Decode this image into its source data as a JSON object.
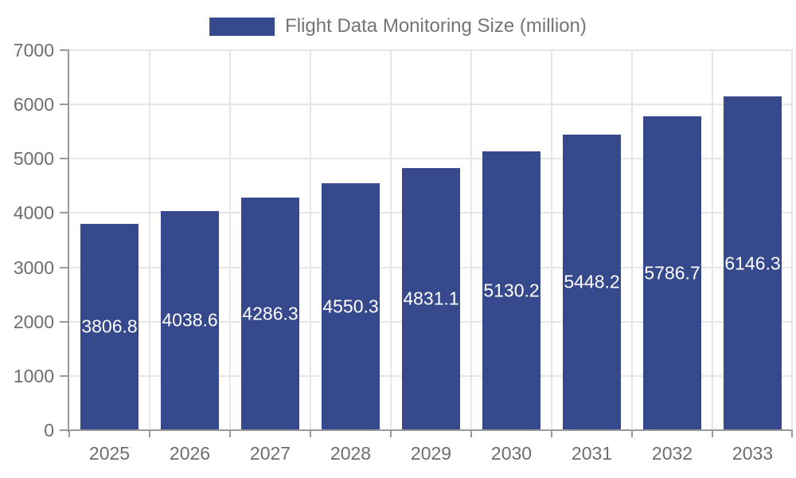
{
  "chart_data": {
    "type": "bar",
    "title": "Flight Data Monitoring Size (million)",
    "legend": {
      "label": "Flight Data Monitoring Size (million)",
      "position": "top-center"
    },
    "categories": [
      "2025",
      "2026",
      "2027",
      "2028",
      "2029",
      "2030",
      "2031",
      "2032",
      "2033"
    ],
    "series": [
      {
        "name": "Flight Data Monitoring Size (million)",
        "values": [
          3806.8,
          4038.6,
          4286.3,
          4550.3,
          4831.1,
          5130.2,
          5448.2,
          5786.7,
          6146.3
        ]
      }
    ],
    "value_labels": [
      "3806.8",
      "4038.6",
      "4286.3",
      "4550.3",
      "4831.1",
      "5130.2",
      "5448.2",
      "5786.7",
      "6146.3"
    ],
    "xlabel": "",
    "ylabel": "",
    "ylim": [
      0,
      7000
    ],
    "yticks": [
      0,
      1000,
      2000,
      3000,
      4000,
      5000,
      6000,
      7000
    ],
    "grid": true,
    "bar_label_position": "inside-center",
    "colors": {
      "bar": "#36498D",
      "grid": "#e6e6e6",
      "axis": "#9a9a9a",
      "tick_text": "#6e6e6e",
      "legend_text": "#747474",
      "bar_label": "#ffffff",
      "background": "#ffffff"
    }
  }
}
